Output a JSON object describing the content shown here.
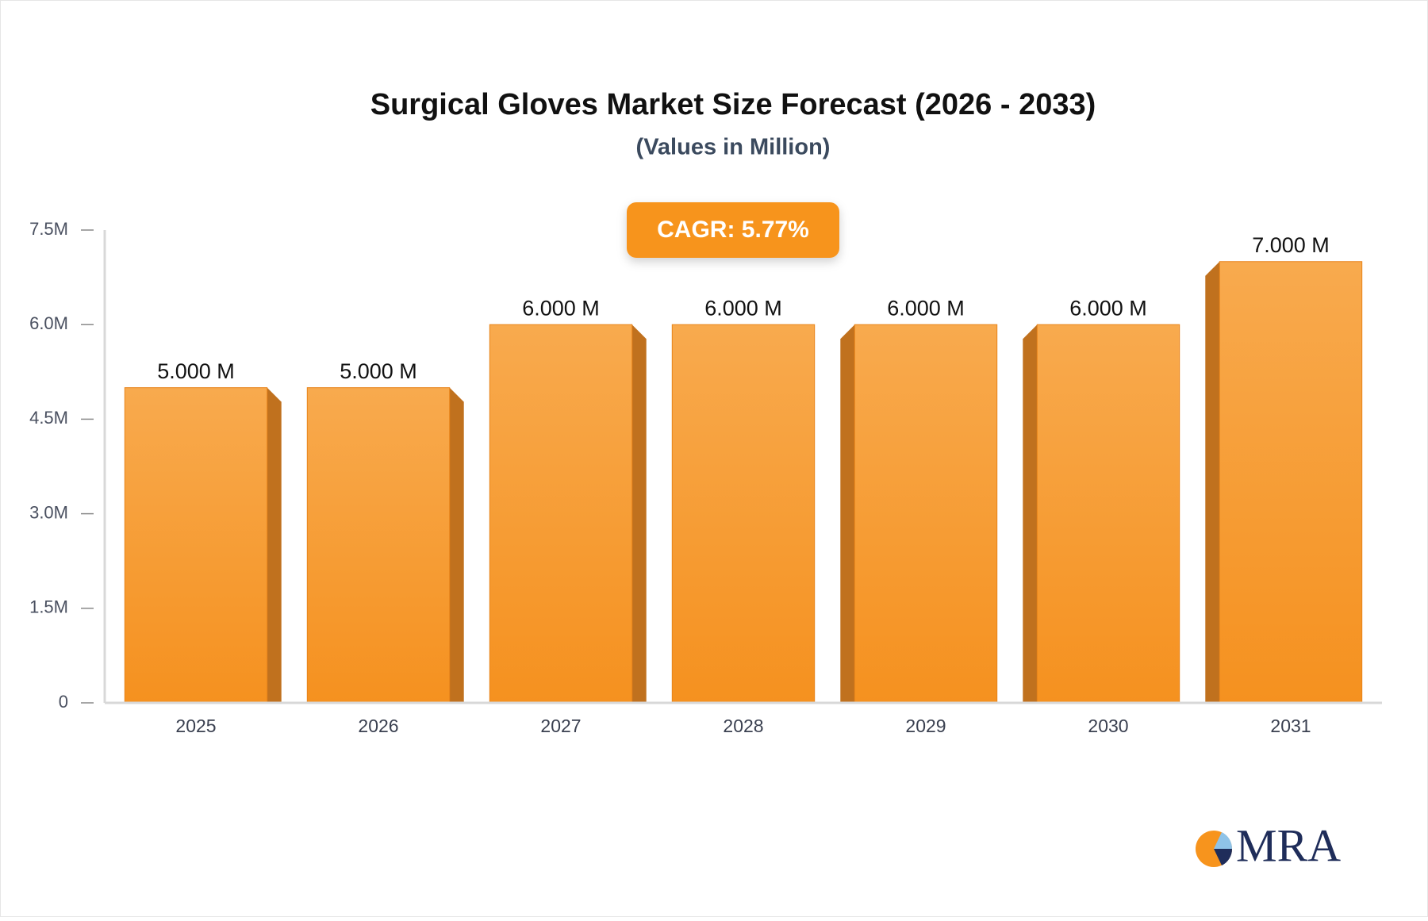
{
  "chart_data": {
    "type": "bar",
    "title": "Surgical Gloves Market Size Forecast (2026 - 2033)",
    "subtitle": "(Values in Million)",
    "annotation": "CAGR: 5.77%",
    "logo": "MRA",
    "categories": [
      "2025",
      "2026",
      "2027",
      "2028",
      "2029",
      "2030",
      "2031"
    ],
    "values": [
      5,
      5,
      6,
      6,
      6,
      6,
      7
    ],
    "value_labels": [
      "5.000 M",
      "5.000 M",
      "6.000 M",
      "6.000 M",
      "6.000 M",
      "6.000 M",
      "7.000 M"
    ],
    "color": "#f7992f",
    "ylim": [
      0,
      7.5
    ],
    "yticks": [
      0,
      {
        "value": 1.5,
        "label": "1.5M"
      },
      {
        "value": 3,
        "label": "3.0M"
      },
      {
        "value": 4.5,
        "label": "4.5M"
      },
      {
        "value": 6,
        "label": "6.0M"
      },
      {
        "value": 7.5,
        "label": "7.5M"
      }
    ],
    "grid": false
  }
}
